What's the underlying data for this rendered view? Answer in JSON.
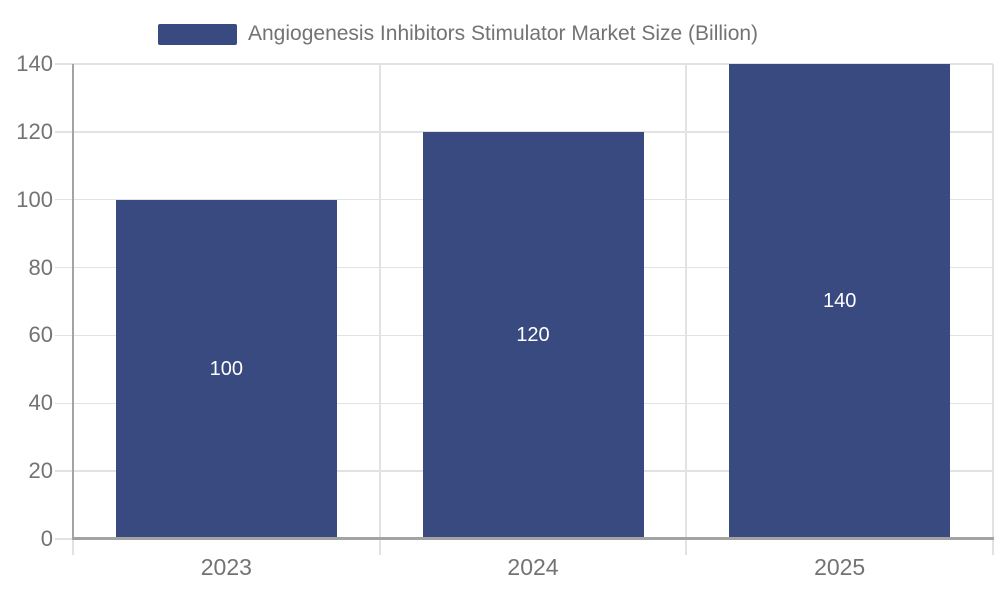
{
  "chart_data": {
    "type": "bar",
    "title": "Angiogenesis Inhibitors Stimulator Market Size (Billion)",
    "legend_position": "top",
    "categories": [
      "2023",
      "2024",
      "2025"
    ],
    "values": [
      100,
      120,
      140
    ],
    "xlabel": "",
    "ylabel": "",
    "ylim": [
      0,
      140
    ],
    "yticks": [
      0,
      20,
      40,
      60,
      80,
      100,
      120,
      140
    ],
    "grid": true,
    "colors": {
      "bar": "#384A80",
      "grid": "#e2e2e2",
      "axis": "#a3a3a3",
      "text": "#737373",
      "bar_label": "#ffffff",
      "background": "#ffffff"
    }
  }
}
